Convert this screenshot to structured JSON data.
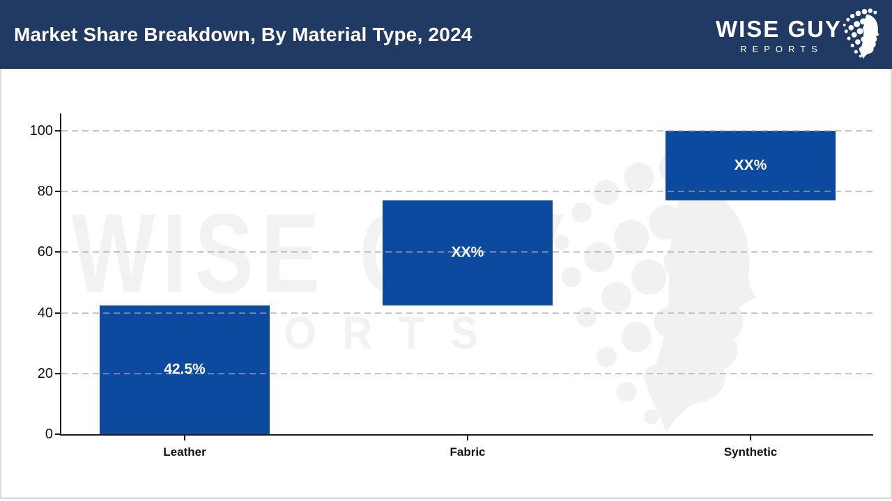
{
  "header": {
    "title": "Market Share Breakdown, By Material Type, 2024"
  },
  "logo": {
    "brand_line1": "WISE GUY",
    "brand_line2": "REPORTS"
  },
  "watermark": {
    "line1": "WISE GUY",
    "line2": "REPORTS"
  },
  "colors": {
    "header_bg": "#213a64",
    "bar_fill": "#0b4a9e",
    "bar_label": "#ffffff",
    "grid": "#a8a8a8",
    "axis": "#1a1a1a",
    "watermark": "#f2f2f2"
  },
  "chart_data": {
    "type": "bar",
    "subtype": "floating-waterfall",
    "title": "Market Share Breakdown, By Material Type, 2024",
    "categories": [
      "Leather",
      "Fabric",
      "Synthetic"
    ],
    "segments": [
      {
        "category": "Leather",
        "start": 0,
        "end": 42.5,
        "label": "42.5%"
      },
      {
        "category": "Fabric",
        "start": 42.5,
        "end": 77,
        "label": "XX%"
      },
      {
        "category": "Synthetic",
        "start": 77,
        "end": 100,
        "label": "XX%"
      }
    ],
    "xlabel": "",
    "ylabel": "",
    "ylim": [
      0,
      100
    ],
    "yticks": [
      0,
      20,
      40,
      60,
      80,
      100
    ],
    "grid": "dashed-horizontal",
    "legend": "none"
  }
}
